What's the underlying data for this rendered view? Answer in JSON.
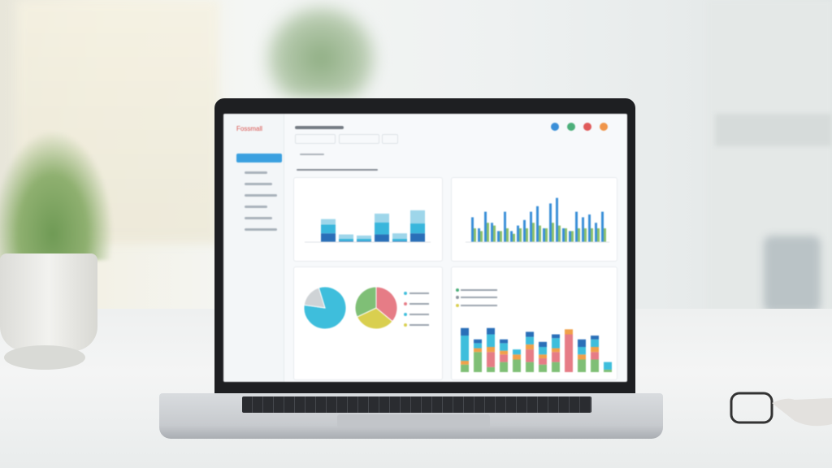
{
  "scene": {
    "description_colors": {
      "screen_bg": "#f7f9fb",
      "accent": "#3aa0e0",
      "lid": "#1e1f22"
    }
  },
  "app": {
    "logo_text": "Fossmall",
    "logo_color": "#d9534f",
    "header_avatars": [
      "#3a8fd8",
      "#4caf7a",
      "#e05a5a",
      "#f0954a"
    ],
    "sidebar_items": 6,
    "sidebar_active_color": "#3aa0e0"
  },
  "charts": {
    "stacked_bar": {
      "colors": [
        "#2a6fb8",
        "#39b6dc",
        "#9ed6ea"
      ],
      "groups": [
        [
          8,
          8,
          5
        ],
        [
          1,
          2,
          4
        ],
        [
          1,
          2,
          3
        ],
        [
          7,
          11,
          8
        ],
        [
          1,
          2,
          5
        ],
        [
          8,
          9,
          12
        ]
      ]
    },
    "grouped_bar": {
      "colors": [
        "#3a8fd8",
        "#8cc06b"
      ],
      "pairs": [
        [
          9,
          5
        ],
        [
          5,
          4
        ],
        [
          11,
          7
        ],
        [
          7,
          6
        ],
        [
          4,
          4
        ],
        [
          11,
          5
        ],
        [
          4,
          3
        ],
        [
          6,
          5
        ],
        [
          8,
          5
        ],
        [
          11,
          7
        ],
        [
          13,
          6
        ],
        [
          5,
          5
        ],
        [
          14,
          7
        ],
        [
          16,
          6
        ],
        [
          5,
          5
        ],
        [
          4,
          4
        ],
        [
          11,
          5
        ],
        [
          9,
          5
        ],
        [
          10,
          5
        ],
        [
          7,
          5
        ],
        [
          11,
          5
        ]
      ]
    },
    "pie_1": {
      "values": [
        82,
        18
      ],
      "colors": [
        "#3ebedc",
        "#cfd3d6"
      ]
    },
    "pie_2": {
      "values": [
        36,
        32,
        32
      ],
      "colors": [
        "#e67c86",
        "#d9cf4f",
        "#7fbf76"
      ]
    },
    "legend_colors": [
      "#3ebedc",
      "#e67c86",
      "#3ebedc",
      "#d9cf4f"
    ],
    "stacked_bar_2": {
      "colors": [
        "#7fbf76",
        "#e67c86",
        "#f0a04a",
        "#3ebedc",
        "#2a6fb8"
      ],
      "bars": [
        [
          6,
          0,
          3,
          20,
          6
        ],
        [
          16,
          0,
          3,
          4,
          3
        ],
        [
          4,
          12,
          4,
          10,
          5
        ],
        [
          8,
          6,
          3,
          6,
          3
        ],
        [
          10,
          0,
          4,
          4,
          0
        ],
        [
          8,
          10,
          4,
          6,
          4
        ],
        [
          6,
          5,
          3,
          6,
          4
        ],
        [
          8,
          8,
          3,
          8,
          3
        ],
        [
          0,
          30,
          4,
          0,
          0
        ],
        [
          10,
          0,
          4,
          6,
          6
        ],
        [
          10,
          6,
          4,
          6,
          3
        ],
        [
          2,
          0,
          0,
          6,
          0
        ]
      ]
    }
  }
}
